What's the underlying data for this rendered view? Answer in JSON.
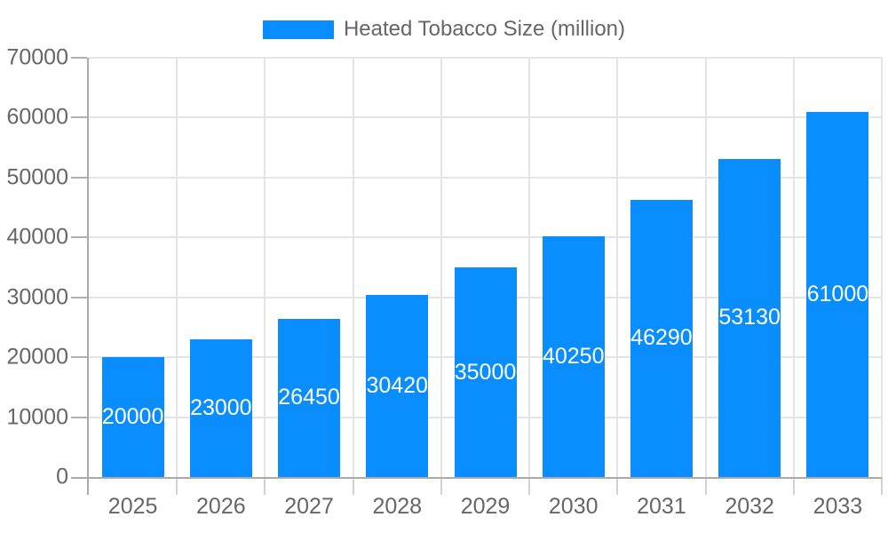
{
  "chart_data": {
    "type": "bar",
    "title": "",
    "legend": "Heated Tobacco Size (million)",
    "legend_position": "top",
    "series_name": "Heated Tobacco Size (million)",
    "categories": [
      "2025",
      "2026",
      "2027",
      "2028",
      "2029",
      "2030",
      "2031",
      "2032",
      "2033"
    ],
    "values": [
      20000,
      23000,
      26450,
      30420,
      35000,
      40250,
      46290,
      53130,
      61000
    ],
    "bar_labels": [
      "20000",
      "23000",
      "26450",
      "30420",
      "35000",
      "40250",
      "46290",
      "53130",
      "61000"
    ],
    "xlabel": "",
    "ylabel": "",
    "ylim": [
      0,
      70000
    ],
    "yticks": [
      0,
      10000,
      20000,
      30000,
      40000,
      50000,
      60000,
      70000
    ],
    "ytick_labels": [
      "0",
      "10000",
      "20000",
      "30000",
      "40000",
      "50000",
      "60000",
      "70000"
    ],
    "grid": true,
    "colors": {
      "bar": "#0a8eff",
      "bar_label": "#ffffff",
      "axis_line": "#aaaaaa",
      "grid_line": "#e4e4e4",
      "x_tick": "#d2d2d2",
      "y_tick": "#b0b0b0",
      "text": "#666666",
      "background": "#ffffff"
    }
  }
}
